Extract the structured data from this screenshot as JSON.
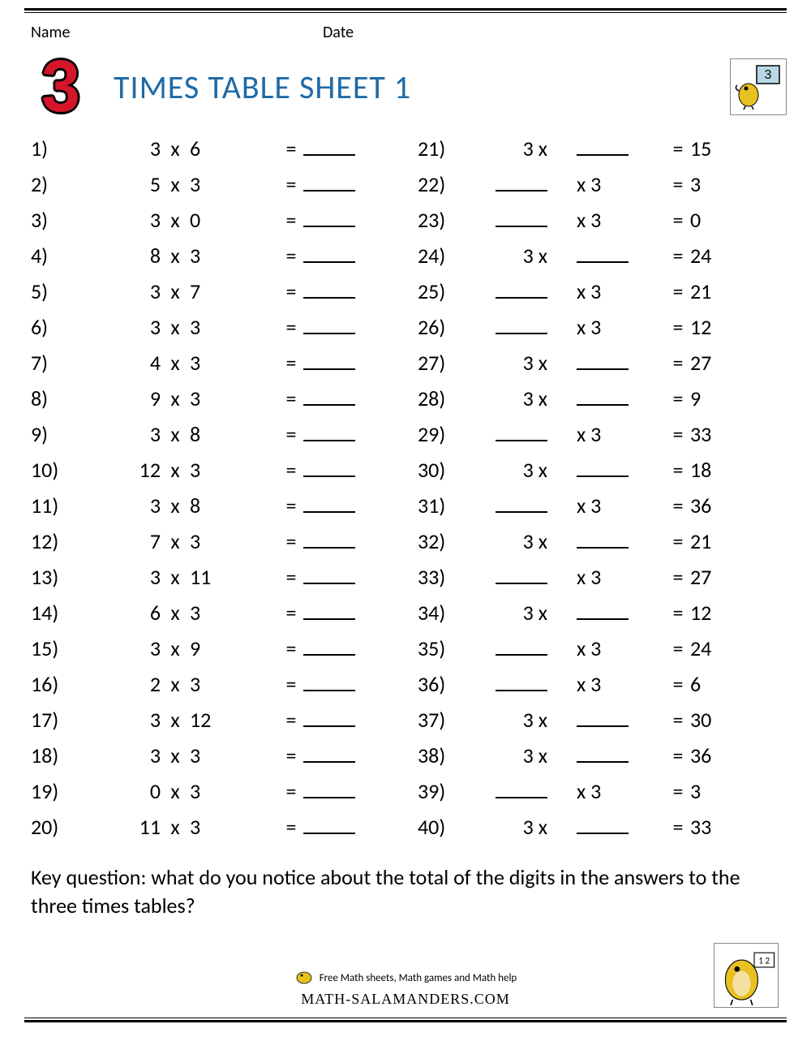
{
  "meta": {
    "name_label": "Name",
    "date_label": "Date"
  },
  "header": {
    "big_number": "3",
    "title": "TIMES TABLE SHEET 1"
  },
  "blank_token": "___",
  "problems_left": [
    {
      "n": "1)",
      "l": "3",
      "r": "6",
      "a": "___"
    },
    {
      "n": "2)",
      "l": "5",
      "r": "3",
      "a": "___"
    },
    {
      "n": "3)",
      "l": "3",
      "r": "0",
      "a": "___"
    },
    {
      "n": "4)",
      "l": "8",
      "r": "3",
      "a": "___"
    },
    {
      "n": "5)",
      "l": "3",
      "r": "7",
      "a": "___"
    },
    {
      "n": "6)",
      "l": "3",
      "r": "3",
      "a": "___"
    },
    {
      "n": "7)",
      "l": "4",
      "r": "3",
      "a": "___"
    },
    {
      "n": "8)",
      "l": "9",
      "r": "3",
      "a": "___"
    },
    {
      "n": "9)",
      "l": "3",
      "r": "8",
      "a": "___"
    },
    {
      "n": "10)",
      "l": "12",
      "r": "3",
      "a": "___"
    },
    {
      "n": "11)",
      "l": "3",
      "r": "8",
      "a": "___"
    },
    {
      "n": "12)",
      "l": "7",
      "r": "3",
      "a": "___"
    },
    {
      "n": "13)",
      "l": "3",
      "r": "11",
      "a": "___"
    },
    {
      "n": "14)",
      "l": "6",
      "r": "3",
      "a": "___"
    },
    {
      "n": "15)",
      "l": "3",
      "r": "9",
      "a": "___"
    },
    {
      "n": "16)",
      "l": "2",
      "r": "3",
      "a": "___"
    },
    {
      "n": "17)",
      "l": "3",
      "r": "12",
      "a": "___"
    },
    {
      "n": "18)",
      "l": "3",
      "r": "3",
      "a": "___"
    },
    {
      "n": "19)",
      "l": "0",
      "r": "3",
      "a": "___"
    },
    {
      "n": "20)",
      "l": "11",
      "r": "3",
      "a": "___"
    }
  ],
  "problems_right": [
    {
      "n": "21)",
      "l": "3",
      "r": "___",
      "a": "15"
    },
    {
      "n": "22)",
      "l": "___",
      "r": "3",
      "a": "3"
    },
    {
      "n": "23)",
      "l": "___",
      "r": "3",
      "a": "0"
    },
    {
      "n": "24)",
      "l": "3",
      "r": "___",
      "a": "24"
    },
    {
      "n": "25)",
      "l": "___",
      "r": "3",
      "a": "21"
    },
    {
      "n": "26)",
      "l": "___",
      "r": "3",
      "a": "12"
    },
    {
      "n": "27)",
      "l": "3",
      "r": "___",
      "a": "27"
    },
    {
      "n": "28)",
      "l": "3",
      "r": "___",
      "a": "9"
    },
    {
      "n": "29)",
      "l": "___",
      "r": "3",
      "a": "33"
    },
    {
      "n": "30)",
      "l": "3",
      "r": "___",
      "a": "18"
    },
    {
      "n": "31)",
      "l": "___",
      "r": "3",
      "a": "36"
    },
    {
      "n": "32)",
      "l": "3",
      "r": "___",
      "a": "21"
    },
    {
      "n": "33)",
      "l": "___",
      "r": "3",
      "a": "27"
    },
    {
      "n": "34)",
      "l": "3",
      "r": "___",
      "a": "12"
    },
    {
      "n": "35)",
      "l": "___",
      "r": "3",
      "a": "24"
    },
    {
      "n": "36)",
      "l": "___",
      "r": "3",
      "a": "6"
    },
    {
      "n": "37)",
      "l": "3",
      "r": "___",
      "a": "30"
    },
    {
      "n": "38)",
      "l": "3",
      "r": "___",
      "a": "36"
    },
    {
      "n": "39)",
      "l": "___",
      "r": "3",
      "a": "3"
    },
    {
      "n": "40)",
      "l": "3",
      "r": "___",
      "a": "33"
    }
  ],
  "key_question": "Key question: what do you notice about the total of the digits in the answers to the three times tables?",
  "footer": {
    "tagline": "Free Math sheets, Math games and Math help",
    "url": "MATH-SALAMANDERS.COM"
  },
  "colors": {
    "title": "#1f6aa5",
    "number_red": "#d4152a",
    "text": "#000000",
    "background": "#ffffff"
  },
  "typography": {
    "body_fontsize_pt": 20,
    "title_fontsize_pt": 30,
    "problem_fontsize_pt": 20
  }
}
